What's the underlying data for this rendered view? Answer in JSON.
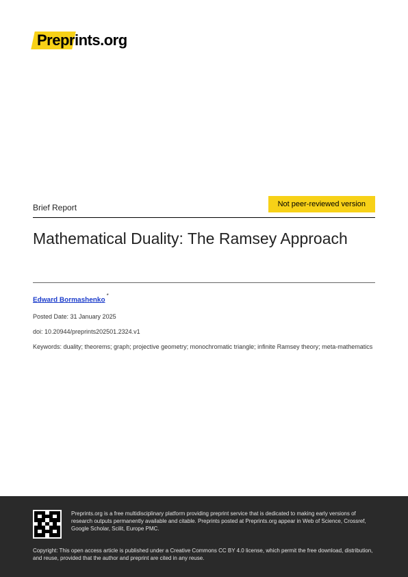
{
  "logo": {
    "text": "Preprints.org"
  },
  "header": {
    "report_type": "Brief Report",
    "badge": "Not peer-reviewed version"
  },
  "title": "Mathematical Duality: The Ramsey Approach",
  "author": {
    "name": "Edward Bormashenko"
  },
  "meta": {
    "posted_date": "Posted Date: 31 January 2025",
    "doi": "doi: 10.20944/preprints202501.2324.v1",
    "keywords": "Keywords: duality; theorems; graph; projective geometry; monochromatic triangle; infinite Ramsey theory; meta-mathematics"
  },
  "footer": {
    "description": "Preprints.org is a free multidisciplinary platform providing preprint service that is dedicated to making early versions of research outputs permanently available and citable. Preprints posted at Preprints.org appear in Web of Science, Crossref, Google Scholar, Scilit, Europe PMC.",
    "copyright": "Copyright: This open access article is published under a Creative Commons CC BY 4.0 license, which permit the free download, distribution, and reuse, provided that the author and preprint are cited in any reuse."
  },
  "colors": {
    "accent": "#f7d117",
    "link": "#2040cc",
    "footer_bg": "#2a2a2a",
    "text": "#222222"
  }
}
